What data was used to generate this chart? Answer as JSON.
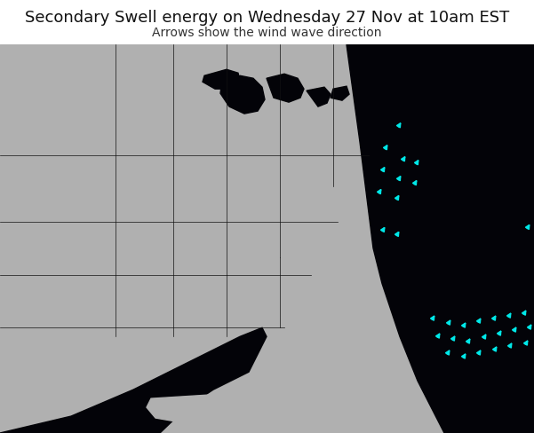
{
  "title": "Secondary Swell energy on Wednesday 27 Nov at 10am EST",
  "subtitle": "Arrows show the wind wave direction",
  "title_fontsize": 13,
  "subtitle_fontsize": 10,
  "background_color": "#ffffff",
  "ocean_color": "#000000",
  "land_color": "#aaaaaa",
  "arrow_color": "#00e8e8",
  "fig_width": 6.01,
  "fig_height": 4.89,
  "dpi": 100,
  "extent": [
    -100,
    -55,
    18,
    52
  ],
  "arrow_lons": [
    -69.5,
    -72.5,
    -70.5,
    -68.0,
    -73.5,
    -71.5,
    -70.0,
    -74.0,
    -72.5,
    -74.5,
    -72.8,
    -55.0,
    -70.0,
    -67.5,
    -65.0,
    -62.5,
    -60.0,
    -57.5,
    -55.0,
    -69.0,
    -66.5,
    -64.0,
    -61.5,
    -59.0,
    -56.5,
    -54.0,
    -67.0,
    -64.5,
    -62.0,
    -59.5,
    -57.0,
    -54.5
  ],
  "arrow_lats": [
    40.5,
    38.5,
    37.5,
    37.0,
    36.5,
    35.5,
    35.0,
    34.5,
    34.0,
    31.5,
    31.0,
    31.5,
    25.0,
    24.5,
    24.0,
    24.5,
    25.0,
    25.5,
    26.0,
    23.0,
    22.5,
    22.0,
    22.5,
    23.0,
    23.5,
    24.0,
    21.0,
    20.5,
    20.0,
    20.5,
    21.0,
    21.5
  ],
  "arrow_u": [
    2,
    2,
    2,
    2,
    2,
    2,
    2,
    2,
    2,
    2,
    2,
    2,
    2,
    2,
    2,
    2,
    2,
    2,
    2,
    2,
    2,
    2,
    2,
    2,
    2,
    2,
    2,
    2,
    2,
    2,
    2,
    2
  ],
  "arrow_v": [
    -3,
    -3,
    -3,
    -3,
    -3,
    -3,
    -3,
    -3,
    -3,
    -3,
    -3,
    -3,
    -3,
    -3,
    -3,
    -3,
    -3,
    -3,
    -3,
    -3,
    -3,
    -3,
    -3,
    -3,
    -3,
    -3,
    -3,
    -3,
    -3,
    -3,
    -3,
    -3
  ]
}
